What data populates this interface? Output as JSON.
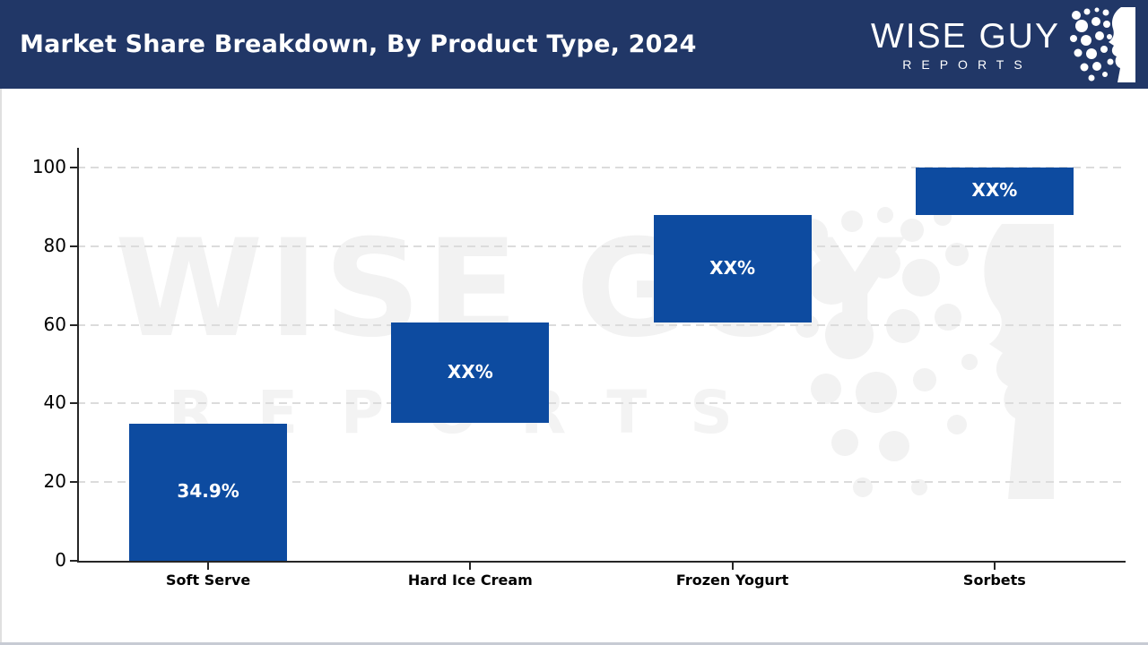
{
  "header": {
    "title": "Market Share Breakdown, By Product Type, 2024",
    "logo": {
      "line1": "WISE GUY",
      "line2": "REPORTS"
    }
  },
  "watermark": {
    "line1": "WISE GUY",
    "line2": "REPORTS"
  },
  "chart_data": {
    "type": "bar",
    "subtype": "waterfall",
    "title": "Market Share Breakdown, By Product Type, 2024",
    "categories": [
      "Soft Serve",
      "Hard Ice Cream",
      "Frozen Yogurt",
      "Sorbets"
    ],
    "segments": [
      {
        "category": "Soft Serve",
        "start": 0,
        "end": 34.9,
        "label": "34.9%"
      },
      {
        "category": "Hard Ice Cream",
        "start": 35,
        "end": 60.5,
        "label": "XX%"
      },
      {
        "category": "Frozen Yogurt",
        "start": 60.5,
        "end": 88,
        "label": "XX%"
      },
      {
        "category": "Sorbets",
        "start": 88,
        "end": 100,
        "label": "XX%"
      }
    ],
    "xlabel": "",
    "ylabel": "",
    "ylim": [
      0,
      100
    ],
    "yticks": [
      0,
      20,
      40,
      60,
      80,
      100
    ],
    "grid": "horizontal-dashed",
    "legend": "none",
    "bar_color": "#0d4ba0",
    "bar_label_color": "#ffffff"
  },
  "colors": {
    "header_bg": "#213767",
    "bar": "#0d4ba0",
    "axis": "#262626",
    "grid": "#dcdcdc",
    "watermark": "#f2f2f2",
    "bottom_line": "#c7cbd4"
  }
}
